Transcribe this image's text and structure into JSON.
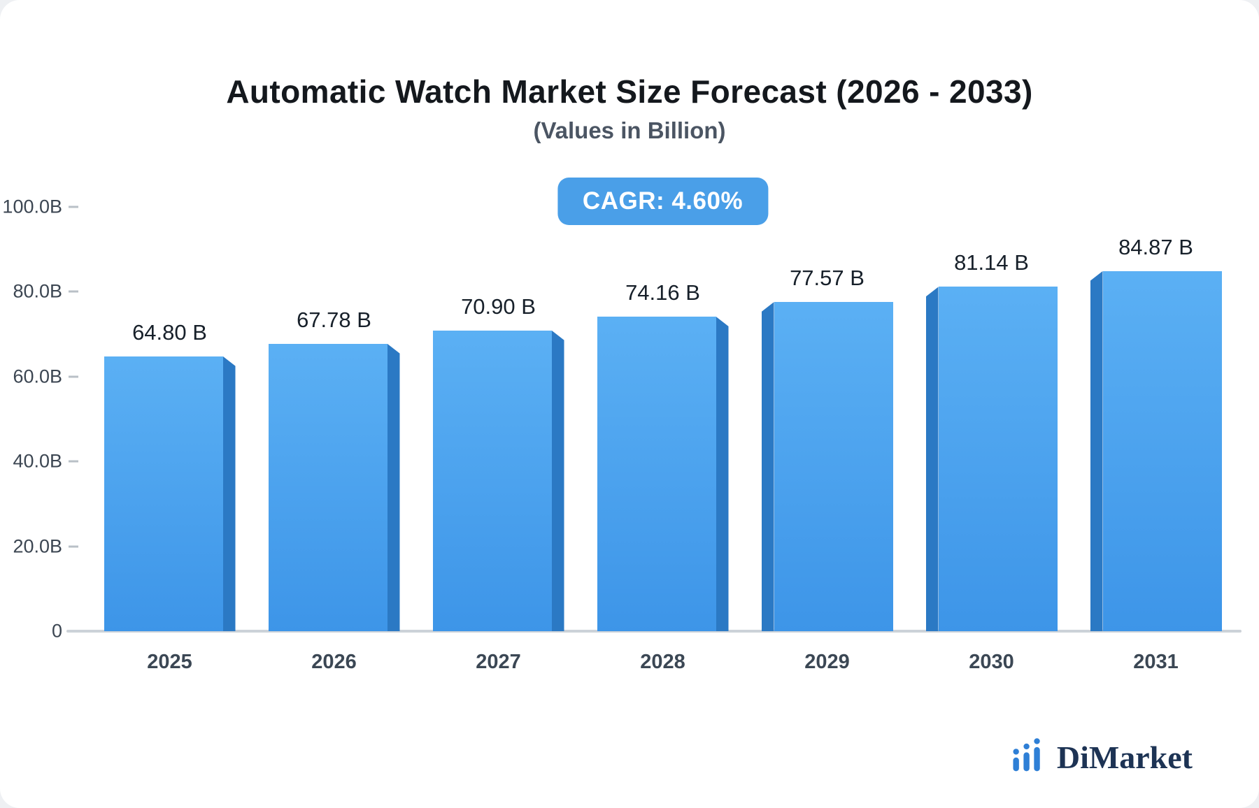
{
  "header": {
    "title": "Automatic Watch Market Size Forecast (2026 - 2033)",
    "subtitle": "(Values in Billion)",
    "cagr_badge": "CAGR: 4.60%"
  },
  "chart_data": {
    "type": "bar",
    "categories": [
      "2025",
      "2026",
      "2027",
      "2028",
      "2029",
      "2030",
      "2031"
    ],
    "values": [
      64.8,
      67.78,
      70.9,
      74.16,
      77.57,
      81.14,
      84.87
    ],
    "value_labels": [
      "64.80 B",
      "67.78 B",
      "70.90 B",
      "74.16 B",
      "77.57 B",
      "81.14 B",
      "84.87 B"
    ],
    "title": "Automatic Watch Market Size Forecast (2026 - 2033)",
    "subtitle": "(Values in Billion)",
    "annotation": "CAGR: 4.60%",
    "xlabel": "",
    "ylabel": "",
    "ylim": [
      0,
      100
    ],
    "yticks": [
      "100.0B",
      "80.0B",
      "60.0B",
      "40.0B",
      "20.0B",
      "0"
    ],
    "grid": false,
    "legend": false
  },
  "colors": {
    "badge": "#4a9fe8",
    "bar_light": "#5bb0f4",
    "bar_dark": "#3d95e8",
    "bar_side": "#2b79c4",
    "logo_navy": "#1d3354",
    "logo_blue": "#2e7fd6"
  },
  "logo": {
    "text": "DiMarket",
    "icon": "bar-chart-dots-icon"
  }
}
